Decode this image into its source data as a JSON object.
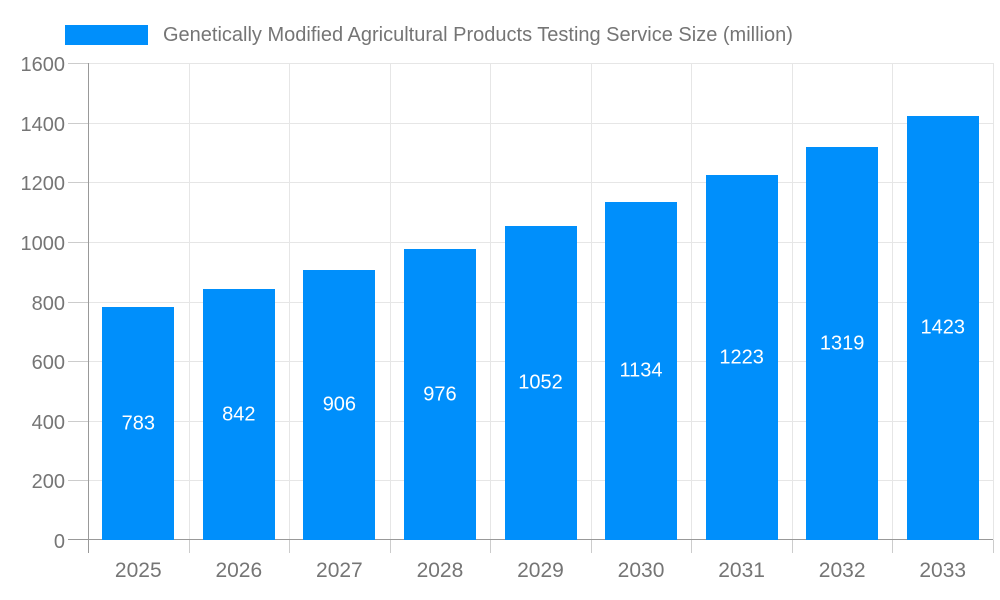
{
  "legend": {
    "label": "Genetically Modified Agricultural Products Testing Service Size (million)"
  },
  "chart_data": {
    "type": "bar",
    "title": "Genetically Modified Agricultural Products Testing Service Size (million)",
    "series_name": "Genetically Modified Agricultural Products Testing Service Size (million)",
    "categories": [
      "2025",
      "2026",
      "2027",
      "2028",
      "2029",
      "2030",
      "2031",
      "2032",
      "2033"
    ],
    "values": [
      783,
      842,
      906,
      976,
      1052,
      1134,
      1223,
      1319,
      1423
    ],
    "xlabel": "",
    "ylabel": "",
    "ylim": [
      0,
      1600
    ],
    "yticks": [
      0,
      200,
      400,
      600,
      800,
      1000,
      1200,
      1400,
      1600
    ],
    "grid": true,
    "legend_position": "top",
    "data_labels": "inside-center"
  },
  "colors": {
    "bar": "#008FFB",
    "bar_label_text": "#FFFFFF",
    "axis_text": "#757575",
    "axis_line": "#999999",
    "gridline": "#E6E6E6",
    "tick": "#CCCCCC",
    "background": "#FFFFFF"
  }
}
